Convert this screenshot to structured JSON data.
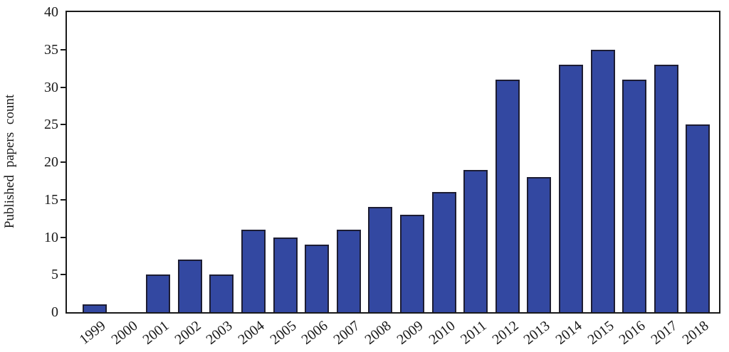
{
  "chart_data": {
    "type": "bar",
    "title": "",
    "categories": [
      "1999",
      "2000",
      "2001",
      "2002",
      "2003",
      "2004",
      "2005",
      "2006",
      "2007",
      "2008",
      "2009",
      "2010",
      "2011",
      "2012",
      "2013",
      "2014",
      "2015",
      "2016",
      "2017",
      "2018"
    ],
    "values": [
      1,
      0,
      5,
      7,
      5,
      11,
      10,
      9,
      11,
      14,
      13,
      16,
      19,
      31,
      18,
      33,
      35,
      31,
      33,
      25
    ],
    "xlabel": "",
    "ylabel": "Published papers count",
    "ylim": [
      0,
      40
    ],
    "yticks": [
      0,
      5,
      10,
      15,
      20,
      25,
      30,
      35,
      40
    ],
    "grid": false,
    "legend": null,
    "x_tick_rotation_deg": 38,
    "colors": {
      "bar_fill": "#3348a1",
      "bar_edge": "#1d1d33",
      "axis": "#1a1a1a",
      "text": "#1a1a1a",
      "background": "#ffffff"
    }
  }
}
